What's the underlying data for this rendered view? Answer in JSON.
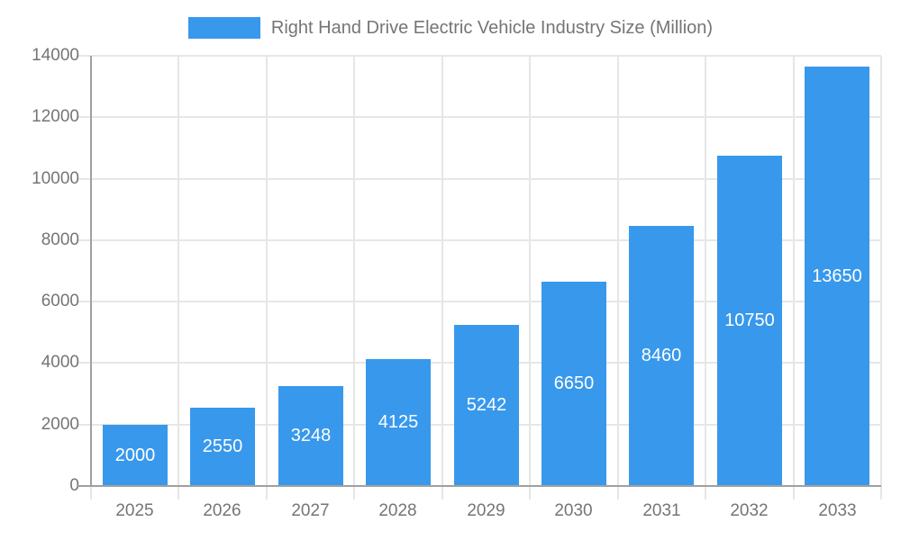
{
  "legend": {
    "label": "Right Hand Drive Electric Vehicle Industry Size (Million)"
  },
  "chart_data": {
    "type": "bar",
    "title": "Right Hand Drive Electric Vehicle Industry Size (Million)",
    "categories": [
      "2025",
      "2026",
      "2027",
      "2028",
      "2029",
      "2030",
      "2031",
      "2032",
      "2033"
    ],
    "values": [
      2000,
      2550,
      3248,
      4125,
      5242,
      6650,
      8460,
      10750,
      13650
    ],
    "xlabel": "",
    "ylabel": "",
    "ylim": [
      0,
      14000
    ],
    "yticks": [
      0,
      2000,
      4000,
      6000,
      8000,
      10000,
      12000,
      14000
    ],
    "grid": true,
    "legend_position": "top",
    "bar_color": "#3898EC",
    "value_label_color": "#FFFFFF",
    "axis_text_color": "#757575",
    "grid_color": "#E6E6E6",
    "axis_line_color": "#A0A0A0"
  }
}
